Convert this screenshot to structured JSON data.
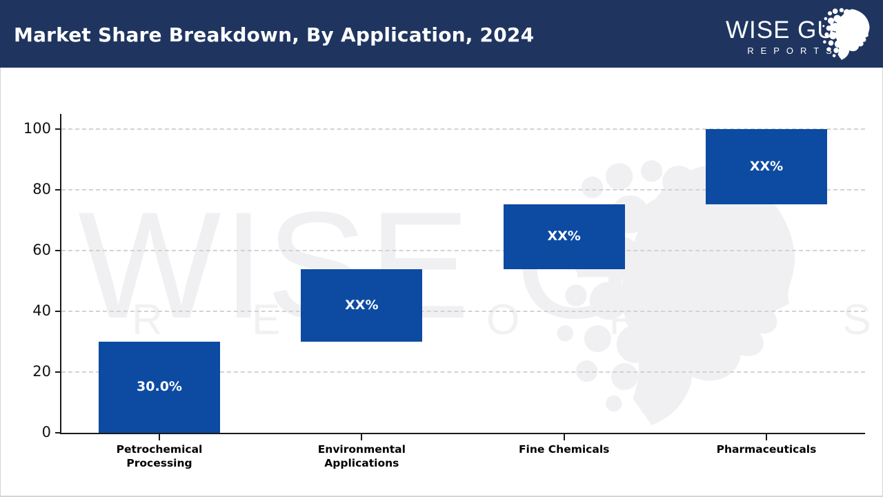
{
  "header": {
    "title": "Market Share Breakdown, By Application, 2024",
    "background_color": "#1f3560",
    "logo": {
      "brand": "WISE GUY",
      "sub": "REPORTS"
    }
  },
  "watermark": {
    "line1": "WISE GU",
    "line2": "R E P O R T S"
  },
  "chart_data": {
    "type": "bar",
    "variant": "floating-waterfall",
    "title": "Market Share Breakdown, By Application, 2024",
    "xlabel": "",
    "ylabel": "",
    "ylim": [
      0,
      100
    ],
    "yticks": [
      0,
      20,
      40,
      60,
      80,
      100
    ],
    "grid": "horizontal-dashed",
    "legend": "none",
    "bar_color": "#0c4ba1",
    "bar_label_color": "#ffffff",
    "categories": [
      "Petrochemical Processing",
      "Environmental Applications",
      "Fine Chemicals",
      "Pharmaceuticals"
    ],
    "segments": [
      {
        "category_lines": [
          "Petrochemical",
          "Processing"
        ],
        "start": 0,
        "end": 30,
        "value": 30.0,
        "label": "30.0%"
      },
      {
        "category_lines": [
          "Environmental",
          "Applications"
        ],
        "start": 30,
        "end": 53.8,
        "value": 23.8,
        "label": "XX%"
      },
      {
        "category_lines": [
          "Fine Chemicals"
        ],
        "start": 53.8,
        "end": 75.2,
        "value": 21.4,
        "label": "XX%"
      },
      {
        "category_lines": [
          "Pharmaceuticals"
        ],
        "start": 75.2,
        "end": 100,
        "value": 24.8,
        "label": "XX%"
      }
    ]
  }
}
